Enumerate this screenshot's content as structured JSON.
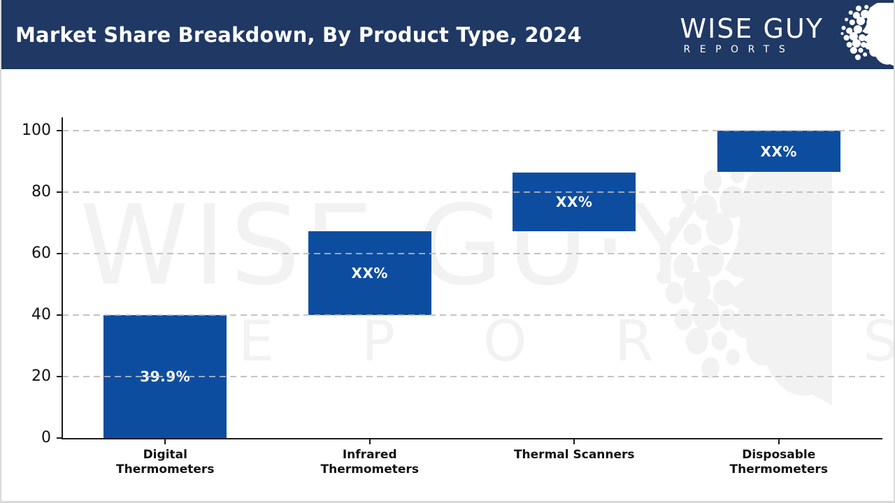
{
  "header": {
    "title": "Market Share Breakdown, By Product Type, 2024",
    "bg_color": "#1f3864",
    "logo": {
      "line1": "WISE GUY",
      "line2": "REPORTS"
    }
  },
  "watermark": {
    "line1": "WISE GU·Y",
    "line2": "R E P O R T S",
    "color": "#f2f2f2"
  },
  "chart_data": {
    "type": "bar",
    "variant": "floating-waterfall",
    "title": "Market Share Breakdown, By Product Type, 2024",
    "xlabel": "",
    "ylabel": "",
    "ylim": [
      0,
      100
    ],
    "yticks": [
      0,
      20,
      40,
      60,
      80,
      100
    ],
    "grid": "dashed-horizontal-over-bars",
    "bar_color": "#0d4da0",
    "bar_label_color": "#ffffff",
    "segments": [
      {
        "category": [
          "Digital",
          "Thermometers"
        ],
        "start": 0,
        "end": 40,
        "label": "39.9%"
      },
      {
        "category": [
          "Infrared",
          "Thermometers"
        ],
        "start": 40,
        "end": 67.3,
        "label": "XX%"
      },
      {
        "category": [
          "Thermal Scanners"
        ],
        "start": 67.3,
        "end": 86.3,
        "label": "XX%"
      },
      {
        "category": [
          "Disposable",
          "Thermometers"
        ],
        "start": 86.5,
        "end": 100,
        "label": "XX%"
      }
    ]
  }
}
